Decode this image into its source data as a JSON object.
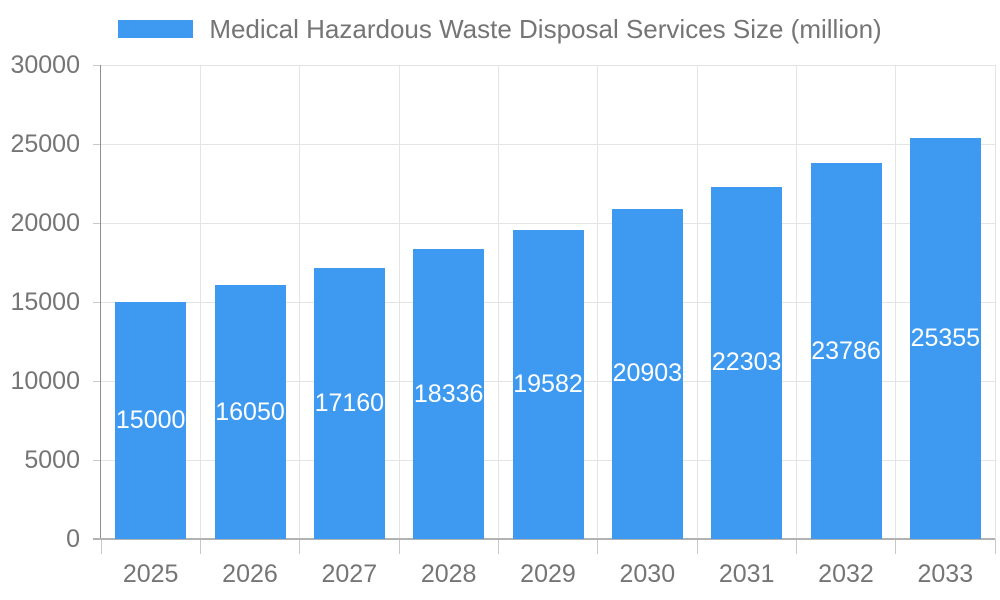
{
  "chart_data": {
    "type": "bar",
    "title": "Medical Hazardous Waste Disposal Services Size (million)",
    "legend": {
      "label": "Medical Hazardous Waste Disposal Services Size (million)",
      "position": "top-center"
    },
    "categories": [
      "2025",
      "2026",
      "2027",
      "2028",
      "2029",
      "2030",
      "2031",
      "2032",
      "2033"
    ],
    "values": [
      15000,
      16050,
      17160,
      18336,
      19582,
      20903,
      22303,
      23786,
      25355
    ],
    "xlabel": "",
    "ylabel": "",
    "ylim": [
      0,
      30000
    ],
    "yticks": [
      0,
      5000,
      10000,
      15000,
      20000,
      25000,
      30000
    ],
    "grid": true,
    "bar_color": "#3d9af0",
    "value_label_color": "#ffffff",
    "axis_text_color": "#757575"
  }
}
